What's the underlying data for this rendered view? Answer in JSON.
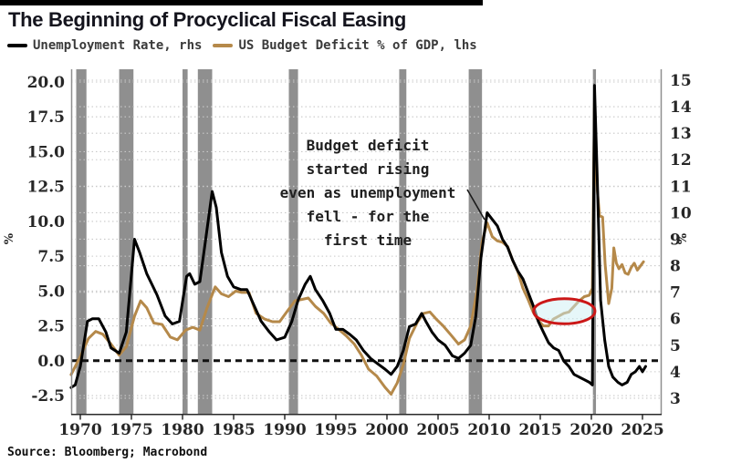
{
  "header": {
    "title": "The Beginning of Procyclical Fiscal Easing"
  },
  "legend": [
    {
      "label": "Unemployment Rate, rhs",
      "color": "#000000"
    },
    {
      "label": "US Budget Deficit % of GDP, lhs",
      "color": "#b5894a"
    }
  ],
  "annotation": {
    "lines": [
      "Budget deficit",
      "started rising",
      "even as unemployment",
      "fell - for the",
      "first time"
    ]
  },
  "source": "Source: Bloomberg; Macrobond",
  "colors": {
    "unemployment_line": "#000000",
    "deficit_line": "#b5894a",
    "recession_band": "#8f8f8f",
    "gridline": "#c9c9c9",
    "zero_line": "#111111",
    "ellipse_stroke": "#cb1717",
    "ellipse_fill": "#cdf0f4"
  },
  "chart_data": {
    "type": "line",
    "title": "The Beginning of Procyclical Fiscal Easing",
    "x_axis": {
      "tick_labels": [
        "1970",
        "1975",
        "1980",
        "1985",
        "1990",
        "1995",
        "2000",
        "2005",
        "2010",
        "2015",
        "2020",
        "2025"
      ],
      "tick_values": [
        1970,
        1975,
        1980,
        1985,
        1990,
        1995,
        2000,
        2005,
        2010,
        2015,
        2020,
        2025
      ],
      "range": [
        1969.1,
        2026.9
      ]
    },
    "left_axis": {
      "label": "%",
      "series": "US Budget Deficit % of GDP",
      "tick_labels": [
        "20.0",
        "17.5",
        "15.0",
        "12.5",
        "10.0",
        "7.5",
        "5.0",
        "2.5",
        "0.0",
        "-2.5"
      ],
      "tick_values": [
        20,
        17.5,
        15,
        12.5,
        10,
        7.5,
        5,
        2.5,
        0,
        -2.5
      ],
      "range": [
        -2.5,
        20
      ]
    },
    "right_axis": {
      "label": "%",
      "series": "Unemployment Rate",
      "tick_labels": [
        "15",
        "14",
        "13",
        "12",
        "11",
        "10",
        "9",
        "8",
        "7",
        "6",
        "5",
        "4",
        "3"
      ],
      "tick_values": [
        15,
        14,
        13,
        12,
        11,
        10,
        9,
        8,
        7,
        6,
        5,
        4,
        3
      ],
      "range": [
        3,
        15
      ]
    },
    "gridlines": {
      "left_values": [
        20,
        17.5,
        15,
        12.5,
        10,
        7.5,
        5,
        2.5,
        -2.5
      ],
      "right_values": [
        15,
        14,
        13,
        12,
        11,
        10,
        9,
        8,
        7,
        6,
        5,
        4,
        3
      ],
      "zero_line_left_value": 0
    },
    "recessions": [
      [
        1969.6,
        1970.6
      ],
      [
        1973.8,
        1975.2
      ],
      [
        1980.0,
        1980.5
      ],
      [
        1981.5,
        1982.9
      ],
      [
        1990.4,
        1991.3
      ],
      [
        2001.2,
        2001.9
      ],
      [
        2008.0,
        2009.3
      ],
      [
        2020.15,
        2020.45
      ]
    ],
    "series": [
      {
        "name": "Unemployment Rate",
        "axis": "right",
        "color": "#000000",
        "points": [
          [
            1969.1,
            3.4
          ],
          [
            1969.5,
            3.5
          ],
          [
            1970.0,
            4.2
          ],
          [
            1970.7,
            5.9
          ],
          [
            1971.2,
            6.0
          ],
          [
            1971.8,
            6.0
          ],
          [
            1972.5,
            5.5
          ],
          [
            1973.0,
            4.9
          ],
          [
            1973.8,
            4.7
          ],
          [
            1974.5,
            5.5
          ],
          [
            1975.3,
            9.0
          ],
          [
            1975.8,
            8.5
          ],
          [
            1976.5,
            7.7
          ],
          [
            1977.0,
            7.3
          ],
          [
            1977.5,
            6.9
          ],
          [
            1978.3,
            6.1
          ],
          [
            1979.0,
            5.8
          ],
          [
            1979.7,
            5.9
          ],
          [
            1980.4,
            7.6
          ],
          [
            1980.7,
            7.7
          ],
          [
            1981.2,
            7.3
          ],
          [
            1981.7,
            7.4
          ],
          [
            1982.2,
            8.8
          ],
          [
            1982.9,
            10.8
          ],
          [
            1983.3,
            10.2
          ],
          [
            1983.8,
            8.5
          ],
          [
            1984.4,
            7.6
          ],
          [
            1985.0,
            7.2
          ],
          [
            1985.7,
            7.1
          ],
          [
            1986.3,
            7.1
          ],
          [
            1987.0,
            6.5
          ],
          [
            1987.7,
            5.9
          ],
          [
            1988.5,
            5.5
          ],
          [
            1989.2,
            5.2
          ],
          [
            1990.0,
            5.3
          ],
          [
            1990.7,
            5.9
          ],
          [
            1991.3,
            6.7
          ],
          [
            1992.0,
            7.3
          ],
          [
            1992.5,
            7.6
          ],
          [
            1993.0,
            7.1
          ],
          [
            1993.7,
            6.7
          ],
          [
            1994.4,
            6.2
          ],
          [
            1995.0,
            5.6
          ],
          [
            1995.7,
            5.6
          ],
          [
            1996.4,
            5.4
          ],
          [
            1997.0,
            5.2
          ],
          [
            1997.7,
            4.8
          ],
          [
            1998.4,
            4.5
          ],
          [
            1999.1,
            4.3
          ],
          [
            1999.8,
            4.1
          ],
          [
            2000.4,
            3.9
          ],
          [
            2001.0,
            4.2
          ],
          [
            2001.6,
            4.8
          ],
          [
            2002.2,
            5.7
          ],
          [
            2002.8,
            5.8
          ],
          [
            2003.4,
            6.2
          ],
          [
            2003.8,
            5.9
          ],
          [
            2004.4,
            5.5
          ],
          [
            2005.0,
            5.2
          ],
          [
            2005.7,
            5.0
          ],
          [
            2006.4,
            4.6
          ],
          [
            2007.0,
            4.5
          ],
          [
            2007.6,
            4.7
          ],
          [
            2008.2,
            5.0
          ],
          [
            2008.7,
            6.1
          ],
          [
            2009.2,
            8.3
          ],
          [
            2009.8,
            10.0
          ],
          [
            2010.2,
            9.8
          ],
          [
            2010.8,
            9.5
          ],
          [
            2011.3,
            9.0
          ],
          [
            2011.8,
            8.7
          ],
          [
            2012.3,
            8.2
          ],
          [
            2012.8,
            7.8
          ],
          [
            2013.3,
            7.5
          ],
          [
            2013.8,
            7.0
          ],
          [
            2014.3,
            6.5
          ],
          [
            2014.8,
            5.9
          ],
          [
            2015.3,
            5.5
          ],
          [
            2015.8,
            5.1
          ],
          [
            2016.3,
            4.9
          ],
          [
            2016.8,
            4.8
          ],
          [
            2017.3,
            4.4
          ],
          [
            2017.8,
            4.2
          ],
          [
            2018.3,
            3.9
          ],
          [
            2018.8,
            3.8
          ],
          [
            2019.3,
            3.7
          ],
          [
            2019.8,
            3.6
          ],
          [
            2020.1,
            3.5
          ],
          [
            2020.3,
            14.8
          ],
          [
            2020.6,
            11.0
          ],
          [
            2020.9,
            6.7
          ],
          [
            2021.3,
            5.2
          ],
          [
            2021.7,
            4.2
          ],
          [
            2022.1,
            3.8
          ],
          [
            2022.6,
            3.6
          ],
          [
            2023.0,
            3.5
          ],
          [
            2023.5,
            3.6
          ],
          [
            2023.9,
            3.9
          ],
          [
            2024.3,
            4.0
          ],
          [
            2024.7,
            4.2
          ],
          [
            2025.0,
            4.0
          ],
          [
            2025.3,
            4.2
          ]
        ]
      },
      {
        "name": "US Budget Deficit % of GDP",
        "axis": "left",
        "color": "#b5894a",
        "points": [
          [
            1969.1,
            -1.0
          ],
          [
            1970.0,
            0.3
          ],
          [
            1970.8,
            1.6
          ],
          [
            1971.5,
            2.1
          ],
          [
            1972.2,
            1.9
          ],
          [
            1973.0,
            1.2
          ],
          [
            1973.8,
            0.4
          ],
          [
            1974.5,
            1.0
          ],
          [
            1975.3,
            3.2
          ],
          [
            1975.9,
            4.3
          ],
          [
            1976.5,
            3.8
          ],
          [
            1977.2,
            2.7
          ],
          [
            1978.0,
            2.6
          ],
          [
            1978.8,
            1.7
          ],
          [
            1979.5,
            1.5
          ],
          [
            1980.3,
            2.2
          ],
          [
            1981.0,
            2.4
          ],
          [
            1981.7,
            2.2
          ],
          [
            1982.4,
            3.8
          ],
          [
            1983.2,
            5.3
          ],
          [
            1983.8,
            4.8
          ],
          [
            1984.5,
            4.6
          ],
          [
            1985.2,
            5.0
          ],
          [
            1985.8,
            4.9
          ],
          [
            1986.5,
            4.9
          ],
          [
            1987.2,
            3.4
          ],
          [
            1988.0,
            3.0
          ],
          [
            1988.8,
            2.8
          ],
          [
            1989.5,
            2.8
          ],
          [
            1990.2,
            3.5
          ],
          [
            1991.0,
            4.3
          ],
          [
            1991.7,
            4.4
          ],
          [
            1992.3,
            4.5
          ],
          [
            1993.0,
            3.9
          ],
          [
            1993.8,
            3.4
          ],
          [
            1994.5,
            2.7
          ],
          [
            1995.2,
            2.3
          ],
          [
            1996.0,
            1.8
          ],
          [
            1996.8,
            1.2
          ],
          [
            1997.5,
            0.4
          ],
          [
            1998.2,
            -0.6
          ],
          [
            1999.0,
            -1.1
          ],
          [
            1999.8,
            -1.9
          ],
          [
            2000.4,
            -2.4
          ],
          [
            2001.0,
            -1.6
          ],
          [
            2001.6,
            -0.3
          ],
          [
            2002.2,
            1.6
          ],
          [
            2003.0,
            2.8
          ],
          [
            2003.6,
            3.4
          ],
          [
            2004.2,
            3.5
          ],
          [
            2004.8,
            3.0
          ],
          [
            2005.5,
            2.5
          ],
          [
            2006.2,
            1.9
          ],
          [
            2007.0,
            1.2
          ],
          [
            2007.6,
            1.5
          ],
          [
            2008.2,
            2.5
          ],
          [
            2008.8,
            5.0
          ],
          [
            2009.3,
            8.5
          ],
          [
            2009.8,
            9.9
          ],
          [
            2010.3,
            8.9
          ],
          [
            2010.8,
            8.6
          ],
          [
            2011.3,
            8.5
          ],
          [
            2011.8,
            8.2
          ],
          [
            2012.3,
            7.2
          ],
          [
            2012.8,
            6.4
          ],
          [
            2013.3,
            5.2
          ],
          [
            2013.8,
            4.4
          ],
          [
            2014.3,
            3.5
          ],
          [
            2014.8,
            2.9
          ],
          [
            2015.3,
            2.5
          ],
          [
            2015.8,
            2.5
          ],
          [
            2016.3,
            3.0
          ],
          [
            2016.8,
            3.2
          ],
          [
            2017.3,
            3.4
          ],
          [
            2017.8,
            3.5
          ],
          [
            2018.3,
            3.9
          ],
          [
            2018.8,
            4.3
          ],
          [
            2019.3,
            4.6
          ],
          [
            2019.8,
            4.7
          ],
          [
            2020.1,
            5.2
          ],
          [
            2020.3,
            18.5
          ],
          [
            2020.5,
            12.9
          ],
          [
            2020.8,
            10.4
          ],
          [
            2021.1,
            10.3
          ],
          [
            2021.35,
            6.9
          ],
          [
            2021.7,
            4.1
          ],
          [
            2022.0,
            5.2
          ],
          [
            2022.2,
            8.1
          ],
          [
            2022.45,
            7.0
          ],
          [
            2022.7,
            6.6
          ],
          [
            2023.0,
            6.9
          ],
          [
            2023.3,
            6.3
          ],
          [
            2023.6,
            6.2
          ],
          [
            2023.9,
            6.7
          ],
          [
            2024.2,
            7.0
          ],
          [
            2024.5,
            6.5
          ],
          [
            2024.8,
            6.8
          ],
          [
            2025.1,
            7.1
          ]
        ]
      }
    ],
    "highlight_ellipse": {
      "center_year": 2017.35,
      "center_left_value": 3.55,
      "rx_years": 3.0,
      "ry_left_units": 0.9
    },
    "annotation_text": "Budget deficit started rising even as unemployment fell - for the first time",
    "legend_position": "top-left",
    "grid": "dotted"
  }
}
